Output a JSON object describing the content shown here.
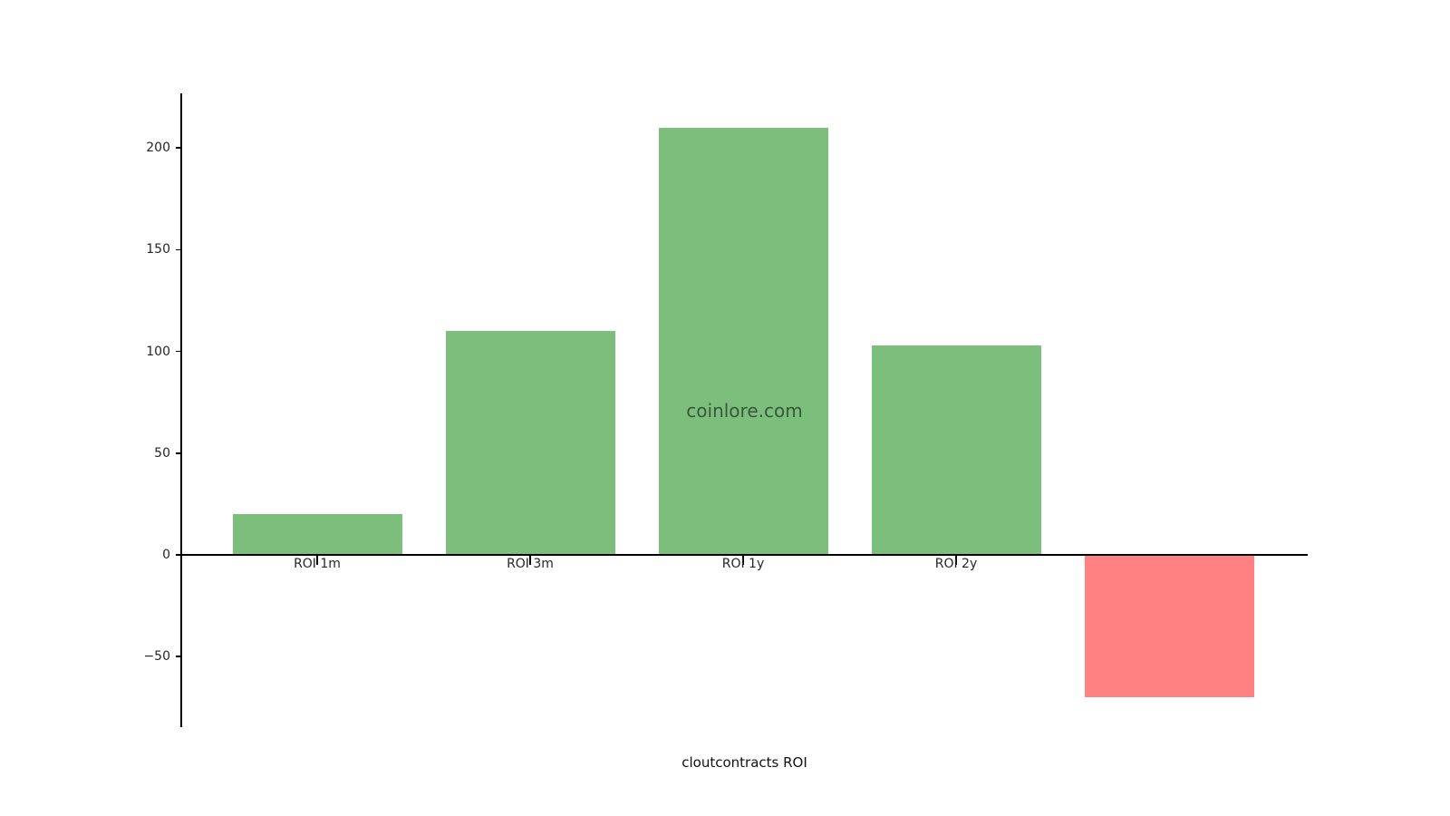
{
  "chart_data": {
    "type": "bar",
    "title": "cloutcontracts ROI",
    "watermark": "coinlore.com",
    "categories": [
      "ROI 1m",
      "ROI 3m",
      "ROI 1y",
      "ROI 2y",
      ""
    ],
    "values": [
      20,
      110,
      210,
      103,
      -70
    ],
    "positive_color": "#7cbf7d",
    "negative_color": "#ff8181",
    "y_ticks": [
      200,
      150,
      100,
      50,
      0,
      -50
    ],
    "ylim": [
      -85,
      227
    ],
    "xlabel": "",
    "ylabel": "",
    "grid": false,
    "legend": "none",
    "axis_color": "#000000",
    "tick_label_color": "#262626",
    "title_color": "#111111"
  }
}
